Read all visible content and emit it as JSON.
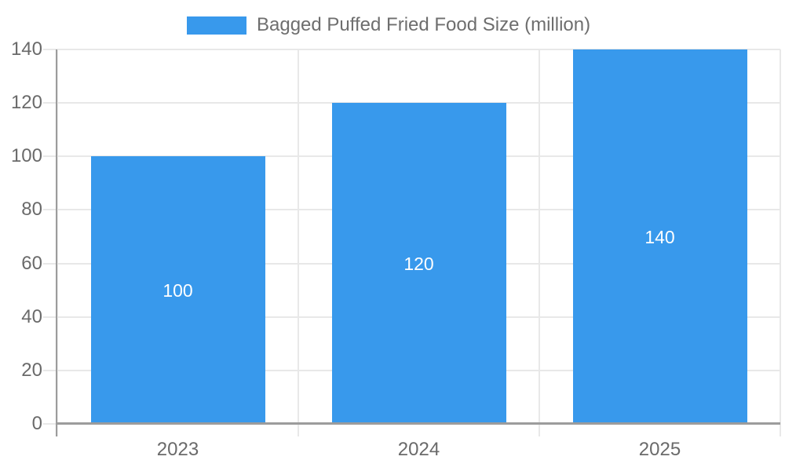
{
  "chart_data": {
    "type": "bar",
    "title": "Bagged Puffed Fried Food Size (million)",
    "categories": [
      "2023",
      "2024",
      "2025"
    ],
    "series": [
      {
        "name": "Bagged Puffed Fried Food Size (million)",
        "values": [
          100,
          120,
          140
        ],
        "data_labels": [
          "100",
          "120",
          "140"
        ]
      }
    ],
    "xlabel": "",
    "ylabel": "",
    "ylim": [
      0,
      140
    ],
    "yticks": [
      0,
      20,
      40,
      60,
      80,
      100,
      120,
      140
    ],
    "grid": "horizontal and vertical boundary gridlines on",
    "legend_position": "top-center",
    "colors": {
      "bar": "#3899EC",
      "bar_label_text": "#FFFFFF",
      "gridline": "#E8E8E8",
      "axis_line": "#9C9C9C",
      "tick_label_text": "#6A6A6A",
      "legend_text": "#6E6E6E",
      "background": "#FFFFFF"
    }
  }
}
